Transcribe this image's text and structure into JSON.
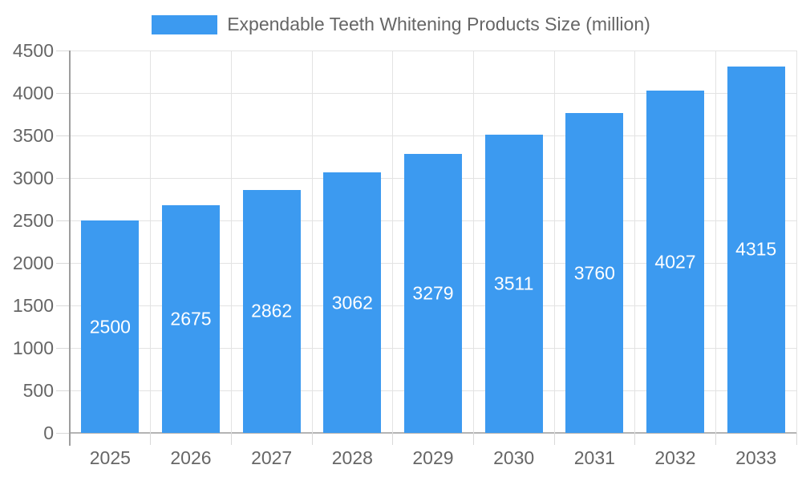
{
  "legend": {
    "label": "Expendable Teeth Whitening Products Size (million)"
  },
  "chart_data": {
    "type": "bar",
    "title": "Expendable Teeth Whitening Products Size (million)",
    "categories": [
      "2025",
      "2026",
      "2027",
      "2028",
      "2029",
      "2030",
      "2031",
      "2032",
      "2033"
    ],
    "series": [
      {
        "name": "Expendable Teeth Whitening Products Size (million)",
        "values": [
          2500,
          2675,
          2862,
          3062,
          3279,
          3511,
          3760,
          4027,
          4315
        ]
      }
    ],
    "values": [
      2500,
      2675,
      2862,
      3062,
      3279,
      3511,
      3760,
      4027,
      4315
    ],
    "xlabel": "",
    "ylabel": "",
    "ylim": [
      0,
      4500
    ],
    "yticks": [
      0,
      500,
      1000,
      1500,
      2000,
      2500,
      3000,
      3500,
      4000,
      4500
    ],
    "grid": true,
    "legend_position": "top-center",
    "value_labels": "inside-center",
    "colors": {
      "bar": "#3C9AF0",
      "axis_text": "#666666",
      "value_label_text": "#ffffff",
      "gridline": "#e3e3e3",
      "tick": "#d9d9d9",
      "axis_line": "#9e9e9e",
      "baseline": "#b4b4b4",
      "background": "#ffffff"
    }
  }
}
